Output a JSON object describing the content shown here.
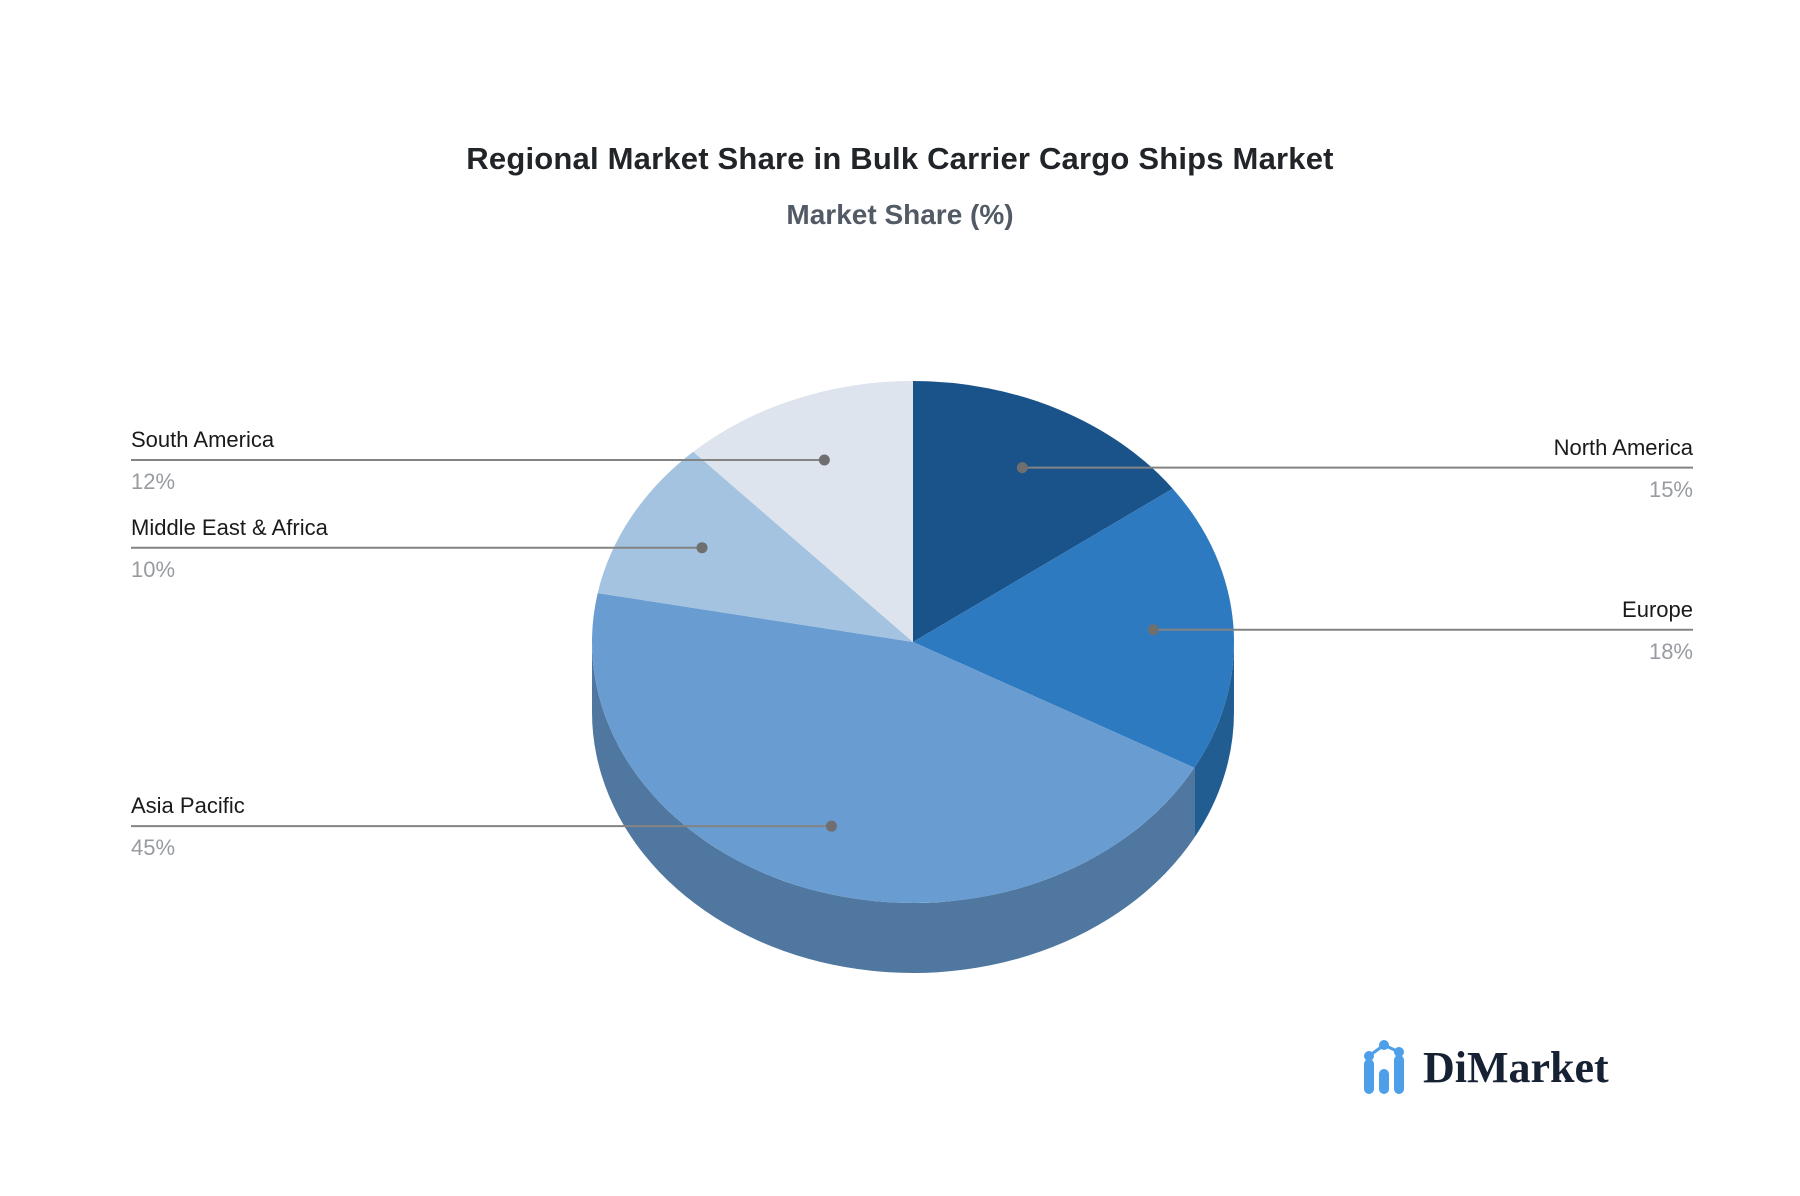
{
  "header": {
    "title": "Regional Market Share in Bulk Carrier Cargo Ships Market",
    "subtitle": "Market Share (%)"
  },
  "logo": {
    "brand": "DiMarket",
    "icon": "bar-chart-logo-icon",
    "icon_color": "#4c9fe8",
    "text_color": "#172134"
  },
  "chart_data": {
    "type": "pie",
    "title": "Regional Market Share in Bulk Carrier Cargo Ships Market",
    "subtitle": "Market Share (%)",
    "unit": "%",
    "effect": "3d",
    "start_angle_deg": 90,
    "direction": "clockwise",
    "legend_position": "none",
    "slices": [
      {
        "label": "North America",
        "value": 15,
        "display": "15%",
        "color": "#1a5389",
        "label_side": "right"
      },
      {
        "label": "Europe",
        "value": 18,
        "display": "18%",
        "color": "#2d7ac0",
        "label_side": "right"
      },
      {
        "label": "Asia Pacific",
        "value": 45,
        "display": "45%",
        "color": "#699dd1",
        "label_side": "left"
      },
      {
        "label": "Middle East & Africa",
        "value": 10,
        "display": "10%",
        "color": "#a3c3e0",
        "label_side": "left"
      },
      {
        "label": "South America",
        "value": 12,
        "display": "12%",
        "color": "#dde4ee",
        "label_side": "left"
      }
    ],
    "label_name_color": "#1a1a1a",
    "label_value_color": "#989ba1",
    "leader_line_color": "#838383",
    "leader_dot_color": "#6f6f6f"
  }
}
